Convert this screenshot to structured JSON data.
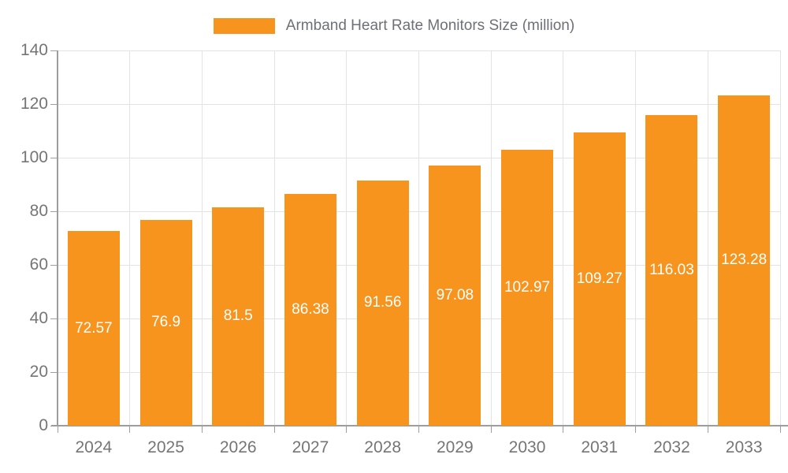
{
  "legend": {
    "label": "Armband Heart Rate Monitors Size (million)"
  },
  "colors": {
    "bar": "#f7941e",
    "bar_label_text": "#ffffff",
    "axis_text": "#757575",
    "legend_text": "#6e7079",
    "grid_line": "#e3e3e3",
    "axis_line": "#9d9d9d",
    "background": "#ffffff"
  },
  "chart_data": {
    "type": "bar",
    "title": "Armband Heart Rate Monitors Size (million)",
    "categories": [
      "2024",
      "2025",
      "2026",
      "2027",
      "2028",
      "2029",
      "2030",
      "2031",
      "2032",
      "2033"
    ],
    "values": [
      72.57,
      76.9,
      81.5,
      86.38,
      91.56,
      97.08,
      102.97,
      109.27,
      116.03,
      123.28
    ],
    "series_name": "Armband Heart Rate Monitors Size (million)",
    "xlabel": "",
    "ylabel": "",
    "ylim": [
      0,
      140
    ],
    "yticks": [
      0,
      20,
      40,
      60,
      80,
      100,
      120,
      140
    ],
    "grid": true,
    "legend_position": "top",
    "value_label_position": "inside-center"
  }
}
